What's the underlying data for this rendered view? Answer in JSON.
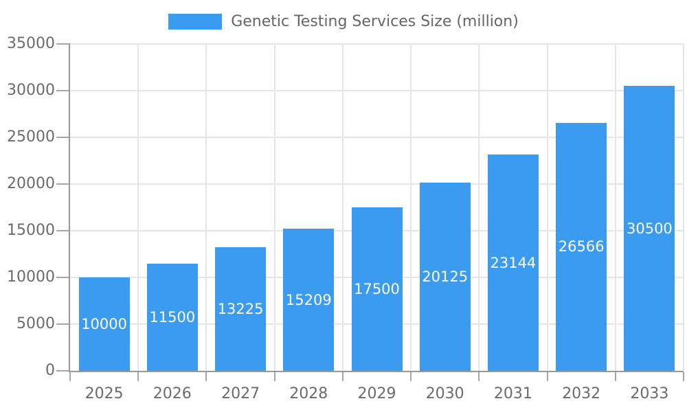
{
  "chart_data": {
    "type": "bar",
    "title": "Genetic Testing Services Size (million)",
    "categories": [
      "2025",
      "2026",
      "2027",
      "2028",
      "2029",
      "2030",
      "2031",
      "2032",
      "2033"
    ],
    "series": [
      {
        "name": "Genetic Testing Services Size (million)",
        "values": [
          10000,
          11500,
          13225,
          15209,
          17500,
          20125,
          23144,
          26566,
          30500
        ]
      }
    ],
    "value_labels_shown": true,
    "xlabel": "",
    "ylabel": "",
    "ylim": [
      0,
      35000
    ],
    "ytick_step": 5000,
    "ytick_labels": [
      "0",
      "5000",
      "10000",
      "15000",
      "20000",
      "25000",
      "30000",
      "35000"
    ],
    "grid": true,
    "legend_position": "top-center",
    "colors": {
      "bar": "#3b9bef",
      "value_label": "#ffffff",
      "axis_line": "#999999",
      "tick_mark": "#a6a6a6",
      "gridline": "#e6e6e6",
      "tick_label": "#6b6b6b",
      "legend_text": "#666666",
      "background": "#ffffff"
    }
  }
}
